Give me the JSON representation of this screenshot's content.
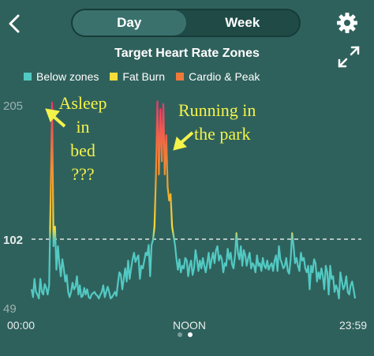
{
  "header": {
    "tabs": [
      {
        "label": "Day",
        "active": true
      },
      {
        "label": "Week",
        "active": false
      }
    ],
    "back_icon": "chevron-left-icon",
    "settings_icon": "gear-icon"
  },
  "title": "Target Heart Rate Zones",
  "expand_icon": "expand-icon",
  "legend": [
    {
      "label": "Below zones",
      "color": "#52c9c3"
    },
    {
      "label": "Fat Burn",
      "color": "#f6dc3b"
    },
    {
      "label": "Cardio & Peak",
      "color": "#ee7a3a"
    }
  ],
  "annotations": {
    "asleep": [
      "Asleep",
      "in",
      "bed",
      "???"
    ],
    "running": [
      "Running in",
      "the park"
    ]
  },
  "chart_data": {
    "type": "line",
    "x_ticks": [
      "00:00",
      "NOON",
      "23:59"
    ],
    "y_ticks": [
      205,
      102,
      49
    ],
    "ylim": [
      49,
      205
    ],
    "reference_line": 102,
    "zone_thresholds": {
      "fat_burn": 102,
      "cardio": 135
    },
    "series": [
      {
        "values": [
          62,
          56,
          70,
          60,
          58,
          55,
          70,
          60,
          58,
          66,
          63,
          58,
          65,
          130,
          205,
          95,
          110,
          77,
          95,
          82,
          72,
          85,
          78,
          68,
          73,
          60,
          56,
          60,
          67,
          62,
          64,
          72,
          58,
          65,
          56,
          57,
          63,
          58,
          62,
          56,
          55,
          58,
          59,
          60,
          58,
          57,
          55,
          58,
          60,
          65,
          56,
          60,
          64,
          60,
          55,
          56,
          58,
          60,
          57,
          67,
          75,
          73,
          62,
          70,
          78,
          68,
          84,
          70,
          78,
          85,
          90,
          83,
          86,
          88,
          70,
          80,
          78,
          84,
          90,
          88,
          96,
          72,
          96,
          100,
          110,
          150,
          206,
          150,
          200,
          160,
          204,
          150,
          180,
          140,
          130,
          135,
          110,
          103,
          96,
          85,
          77,
          85,
          75,
          80,
          78,
          86,
          84,
          72,
          80,
          84,
          73,
          78,
          92,
          85,
          76,
          84,
          78,
          86,
          80,
          75,
          82,
          90,
          78,
          85,
          90,
          82,
          92,
          95,
          84,
          88,
          85,
          75,
          82,
          80,
          93,
          85,
          90,
          81,
          78,
          88,
          105,
          90,
          85,
          95,
          80,
          92,
          88,
          80,
          86,
          90,
          78,
          82,
          80,
          75,
          88,
          80,
          82,
          76,
          86,
          80,
          78,
          84,
          77,
          80,
          82,
          76,
          84,
          88,
          76,
          95,
          85,
          82,
          78,
          80,
          86,
          76,
          74,
          85,
          105,
          95,
          82,
          86,
          80,
          76,
          90,
          84,
          86,
          78,
          75,
          80,
          62,
          80,
          75,
          85,
          82,
          68,
          75,
          70,
          78,
          72,
          62,
          80,
          75,
          58,
          80,
          70,
          72,
          60,
          65,
          62,
          55,
          75,
          68,
          62,
          65,
          72,
          60,
          58,
          65,
          68,
          62,
          55
        ]
      }
    ]
  },
  "annotation_overlay": true
}
